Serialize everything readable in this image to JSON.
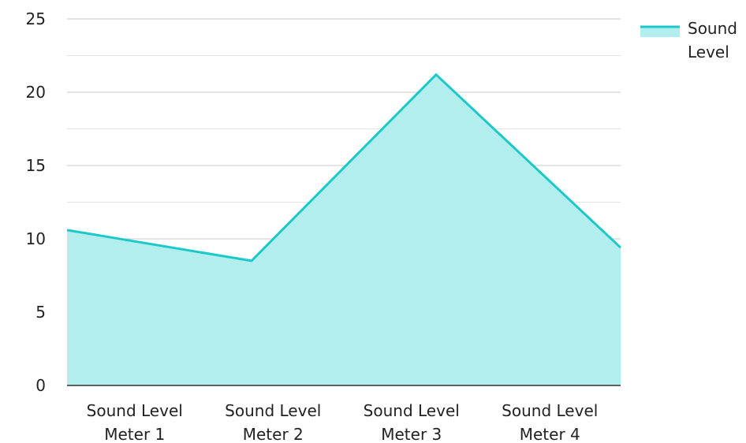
{
  "chart_data": {
    "type": "area",
    "title": "",
    "xlabel": "",
    "ylabel": "",
    "categories": [
      [
        "Sound Level",
        "Meter 1"
      ],
      [
        "Sound Level",
        "Meter 2"
      ],
      [
        "Sound Level",
        "Meter 3"
      ],
      [
        "Sound Level",
        "Meter 4"
      ]
    ],
    "series": [
      {
        "name": [
          "Sound",
          "Level"
        ],
        "values": [
          10.6,
          8.5,
          21.2,
          9.4
        ]
      }
    ],
    "ylim": [
      0,
      25
    ],
    "yticks": [
      "0",
      "5",
      "10",
      "15",
      "20",
      "25"
    ],
    "grid": true,
    "legend": "top-right",
    "colors": {
      "line": "#1cc8c8",
      "fill": "#b2eeee",
      "grid": "#c8c8c8",
      "minor_grid": "#e4e4e4",
      "axis": "#333333"
    }
  }
}
